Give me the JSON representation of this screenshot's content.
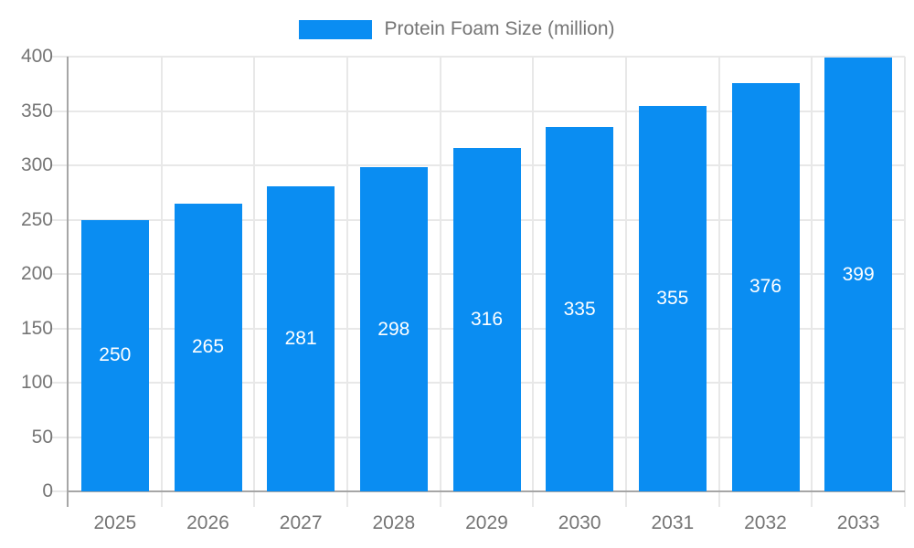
{
  "chart_data": {
    "type": "bar",
    "title": "Protein Foam Size (million)",
    "categories": [
      "2025",
      "2026",
      "2027",
      "2028",
      "2029",
      "2030",
      "2031",
      "2032",
      "2033"
    ],
    "series": [
      {
        "name": "Protein Foam Size (million)",
        "values": [
          250,
          265,
          281,
          298,
          316,
          335,
          355,
          376,
          399
        ]
      }
    ],
    "bar_labels": [
      250,
      265,
      281,
      298,
      316,
      335,
      355,
      376,
      399
    ],
    "xlabel": "",
    "ylabel": "",
    "ylim": [
      0,
      400
    ],
    "yticks": [
      0,
      50,
      100,
      150,
      200,
      250,
      300,
      350,
      400
    ],
    "grid": true,
    "legend_position": "top-center",
    "colors": {
      "bar": "#0a8df2",
      "bar_label": "#ffffff",
      "axis": "#a6a6a6",
      "grid": "#e8e8e8",
      "text": "#757575",
      "background": "#ffffff"
    }
  }
}
